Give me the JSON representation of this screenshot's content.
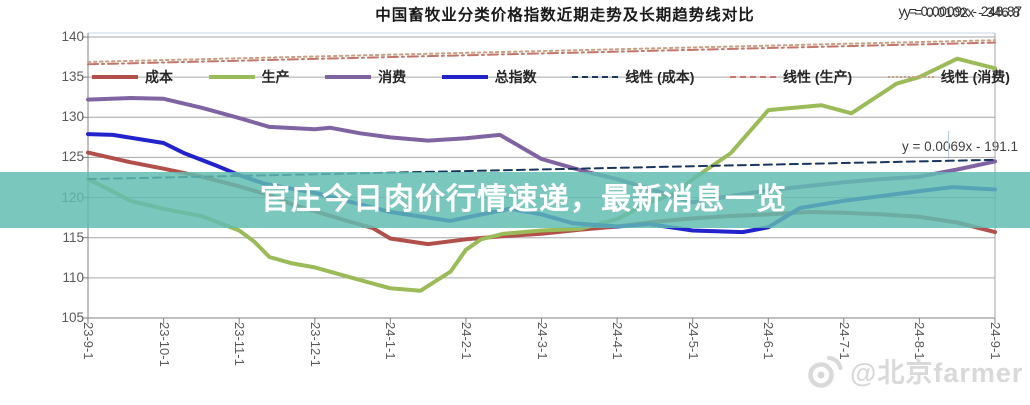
{
  "title": "中国畜牧业分类价格指数近期走势及长期趋势线对比",
  "equations": {
    "top_overlap_1": "y = 0.0009x - 248.87",
    "top_overlap_2": "y = 0.0102x - 346.8",
    "mid": "y = 0.0069x - 191.1"
  },
  "banner": {
    "text": "官庄今日肉价行情速递，最新消息一览",
    "bg_color": "#60bcb2",
    "text_color": "#ffffff"
  },
  "watermark": {
    "icon": "weibo-logo",
    "text": "@北京farmer",
    "color": "#d9d9d9"
  },
  "chart_data": {
    "type": "line",
    "title": "中国畜牧业分类价格指数近期走势及长期趋势线对比",
    "x_labels": [
      "23-9-1",
      "23-10-1",
      "23-11-1",
      "23-12-1",
      "24-1-1",
      "24-2-1",
      "24-3-1",
      "24-4-1",
      "24-5-1",
      "24-6-1",
      "24-7-1",
      "24-8-1",
      "24-9-1"
    ],
    "yticks": [
      105,
      110,
      115,
      120,
      125,
      130,
      135,
      140
    ],
    "ylim": [
      105,
      140
    ],
    "grid": true,
    "legend_position": "top",
    "series": [
      {
        "name": "成本",
        "color": "#b1504b",
        "style": "solid",
        "points": [
          [
            0,
            125.6
          ],
          [
            0.56,
            124.4
          ],
          [
            1,
            123.6
          ],
          [
            1.5,
            122.6
          ],
          [
            2,
            121.4
          ],
          [
            2.5,
            120.0
          ],
          [
            2.71,
            119.1
          ],
          [
            3,
            118.3
          ],
          [
            3.5,
            116.9
          ],
          [
            3.77,
            116.2
          ],
          [
            4,
            114.9
          ],
          [
            4.5,
            114.2
          ],
          [
            5,
            114.8
          ],
          [
            5.5,
            115.2
          ],
          [
            6,
            115.5
          ],
          [
            6.5,
            116.0
          ],
          [
            7,
            116.4
          ],
          [
            7.5,
            117.0
          ],
          [
            8,
            117.4
          ],
          [
            8.5,
            117.7
          ],
          [
            9,
            117.9
          ],
          [
            9.55,
            118.2
          ],
          [
            10,
            118.1
          ],
          [
            10.5,
            117.9
          ],
          [
            11,
            117.6
          ],
          [
            11.5,
            116.9
          ],
          [
            12,
            115.7
          ]
        ]
      },
      {
        "name": "生产",
        "color": "#9bbb59",
        "style": "solid",
        "points": [
          [
            0,
            122.3
          ],
          [
            0.3,
            120.9
          ],
          [
            0.56,
            119.6
          ],
          [
            1,
            118.6
          ],
          [
            1.5,
            117.7
          ],
          [
            2,
            115.9
          ],
          [
            2.2,
            114.5
          ],
          [
            2.4,
            112.6
          ],
          [
            2.7,
            111.8
          ],
          [
            3,
            111.3
          ],
          [
            3.5,
            110.0
          ],
          [
            4,
            108.7
          ],
          [
            4.4,
            108.4
          ],
          [
            4.8,
            110.8
          ],
          [
            5,
            113.5
          ],
          [
            5.2,
            114.8
          ],
          [
            5.5,
            115.5
          ],
          [
            6,
            115.9
          ],
          [
            6.5,
            116.1
          ],
          [
            7,
            117.3
          ],
          [
            7.4,
            119.3
          ],
          [
            7.8,
            120.7
          ],
          [
            8,
            122.3
          ],
          [
            8.5,
            125.5
          ],
          [
            8.9,
            129.8
          ],
          [
            9,
            130.9
          ],
          [
            9.7,
            131.5
          ],
          [
            10.1,
            130.5
          ],
          [
            10.7,
            134.2
          ],
          [
            11,
            135.0
          ],
          [
            11.5,
            137.3
          ],
          [
            12,
            136.1
          ]
        ]
      },
      {
        "name": "消费",
        "color": "#8064a2",
        "style": "solid",
        "points": [
          [
            0,
            132.2
          ],
          [
            0.56,
            132.4
          ],
          [
            1,
            132.3
          ],
          [
            1.5,
            131.2
          ],
          [
            2,
            129.9
          ],
          [
            2.4,
            128.8
          ],
          [
            3,
            128.5
          ],
          [
            3.2,
            128.7
          ],
          [
            3.6,
            128.0
          ],
          [
            4,
            127.5
          ],
          [
            4.5,
            127.1
          ],
          [
            5,
            127.4
          ],
          [
            5.45,
            127.8
          ],
          [
            6,
            124.8
          ],
          [
            6.6,
            123.2
          ],
          [
            7,
            122.3
          ],
          [
            7.6,
            120.6
          ],
          [
            8,
            119.4
          ],
          [
            8.5,
            120.2
          ],
          [
            9,
            120.9
          ],
          [
            9.5,
            121.4
          ],
          [
            10,
            121.9
          ],
          [
            10.5,
            122.3
          ],
          [
            11,
            122.6
          ],
          [
            11.5,
            123.5
          ],
          [
            12,
            124.5
          ]
        ]
      },
      {
        "name": "总指数",
        "color": "#2323cb",
        "style": "solid",
        "points": [
          [
            0,
            127.9
          ],
          [
            0.33,
            127.8
          ],
          [
            1,
            126.8
          ],
          [
            1.28,
            125.5
          ],
          [
            1.72,
            123.9
          ],
          [
            2,
            122.8
          ],
          [
            2.34,
            121.7
          ],
          [
            3,
            120.6
          ],
          [
            3.5,
            119.4
          ],
          [
            4,
            118.2
          ],
          [
            4.79,
            117.1
          ],
          [
            5,
            117.5
          ],
          [
            5.58,
            118.6
          ],
          [
            6,
            117.9
          ],
          [
            6.42,
            116.8
          ],
          [
            7,
            116.4
          ],
          [
            7.43,
            116.7
          ],
          [
            8,
            115.9
          ],
          [
            8.66,
            115.7
          ],
          [
            9,
            116.3
          ],
          [
            9.42,
            118.7
          ],
          [
            10,
            119.6
          ],
          [
            10.5,
            120.2
          ],
          [
            11,
            120.8
          ],
          [
            11.44,
            121.3
          ],
          [
            12,
            121.0
          ]
        ]
      },
      {
        "name": "线性 (成本)",
        "color": "#17375e",
        "style": "dashed",
        "points": [
          [
            0,
            122.3
          ],
          [
            12,
            124.7
          ]
        ]
      },
      {
        "name": "线性 (生产)",
        "color": "#c4766a",
        "style": "dashdot",
        "points": [
          [
            0,
            136.6
          ],
          [
            12,
            139.3
          ]
        ]
      },
      {
        "name": "线性 (消费)",
        "color": "#c9a083",
        "style": "dotted",
        "points": [
          [
            0,
            136.9
          ],
          [
            12,
            139.6
          ]
        ]
      }
    ]
  }
}
